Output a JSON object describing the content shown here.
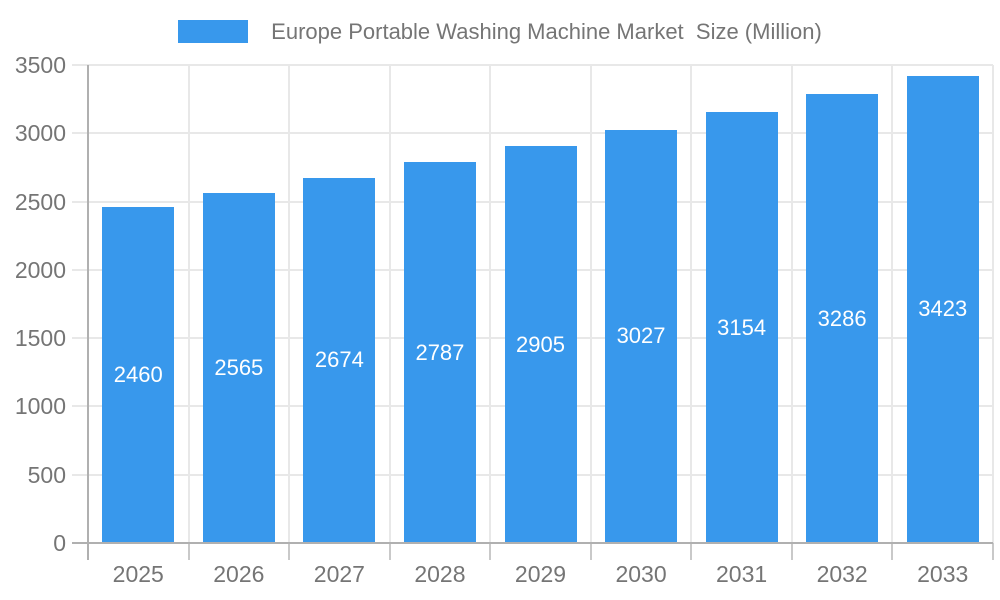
{
  "chart_data": {
    "type": "bar",
    "title": "Europe Portable Washing Machine Market  Size (Million)",
    "categories": [
      "2025",
      "2026",
      "2027",
      "2028",
      "2029",
      "2030",
      "2031",
      "2032",
      "2033"
    ],
    "values": [
      2460,
      2565,
      2674,
      2787,
      2905,
      3027,
      3154,
      3286,
      3423
    ],
    "series": [
      {
        "name": "Europe Portable Washing Machine Market  Size (Million)",
        "values": [
          2460,
          2565,
          2674,
          2787,
          2905,
          3027,
          3154,
          3286,
          3423
        ]
      }
    ],
    "xlabel": "",
    "ylabel": "",
    "ylim": [
      0,
      3500
    ],
    "yticks": [
      0,
      500,
      1000,
      1500,
      2000,
      2500,
      3000,
      3500
    ],
    "ytick_labels": [
      "0",
      "500",
      "1000",
      "1500",
      "2000",
      "2500",
      "3000",
      "3500"
    ],
    "grid": true,
    "legend_position": "top-center",
    "value_labels": "inside-middle"
  },
  "colors": {
    "bar": "#3898EC",
    "bar_label": "#ffffff",
    "axis": "#b0b0b0",
    "grid": "#e8e8e8",
    "tick": "#c9c9c9",
    "text": "#757575",
    "background": "#ffffff"
  }
}
